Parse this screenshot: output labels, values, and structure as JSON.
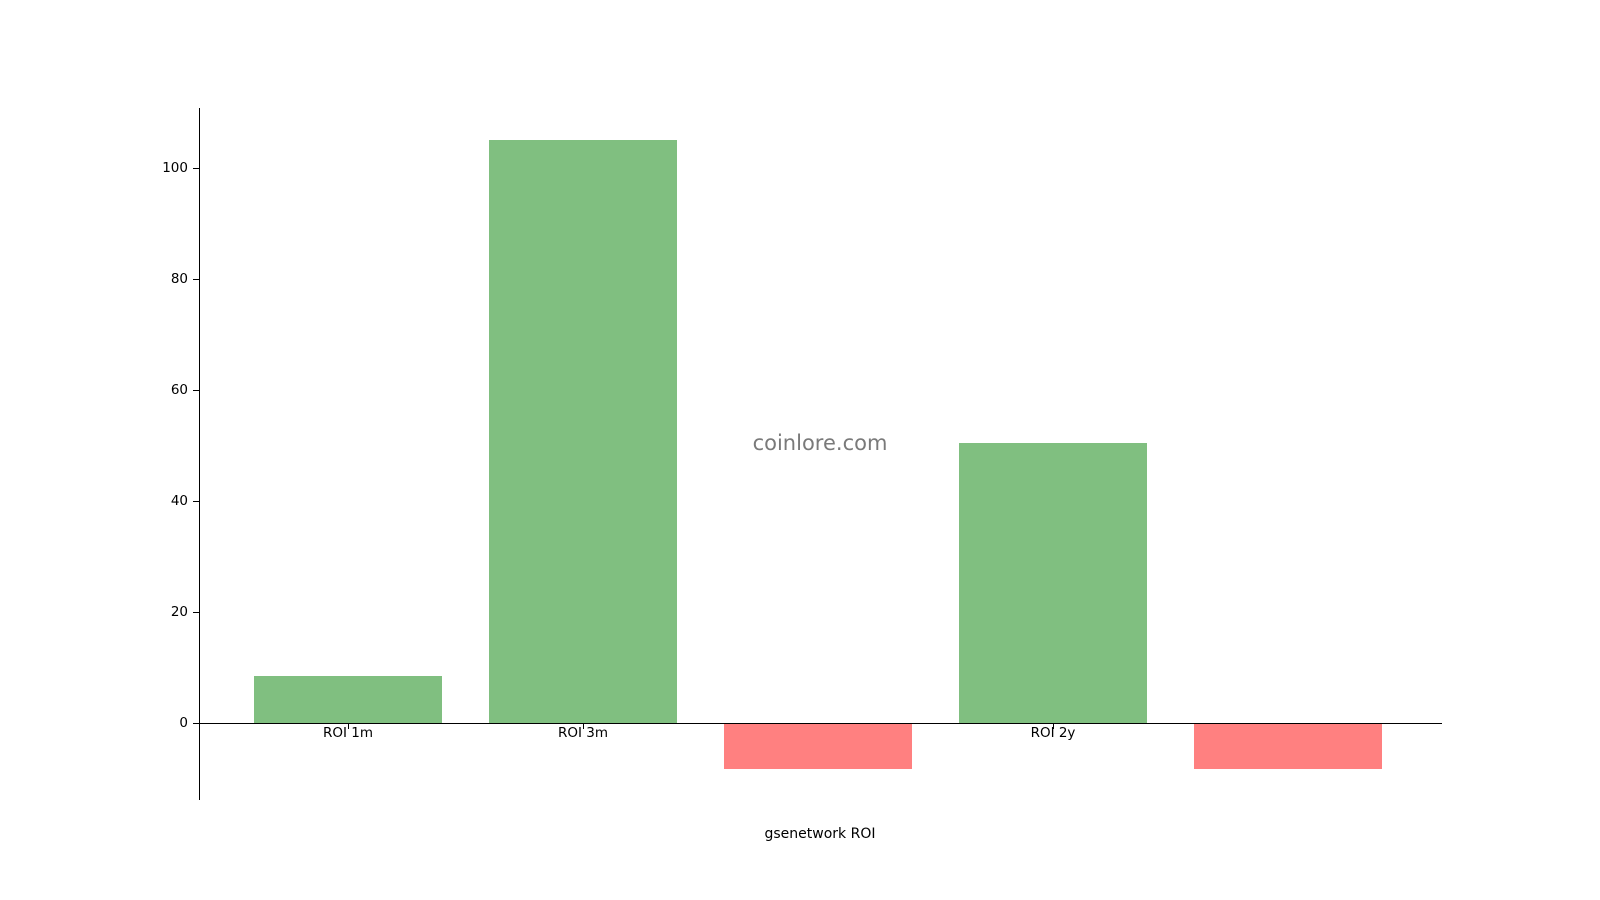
{
  "chart_data": {
    "type": "bar",
    "xlabel": "gsenetwork ROI",
    "watermark": "coinlore.com",
    "categories": [
      "ROI 1m",
      "ROI 3m",
      "",
      "ROI 2y",
      ""
    ],
    "values": [
      8.4,
      105,
      -8.2,
      50.5,
      -8.2
    ],
    "series_note": "single series; bar color depends on sign of value",
    "yticks": [
      0,
      20,
      40,
      60,
      80,
      100
    ],
    "ylim": [
      -13.9,
      110.8
    ],
    "grid": false,
    "legend_position": "none",
    "positive_color": "#80BF80",
    "negative_color": "#FF8080",
    "axis_color": "#000000",
    "tick_label_color": "#000000",
    "watermark_color": "#7a7a7a",
    "background_color": "#ffffff"
  }
}
